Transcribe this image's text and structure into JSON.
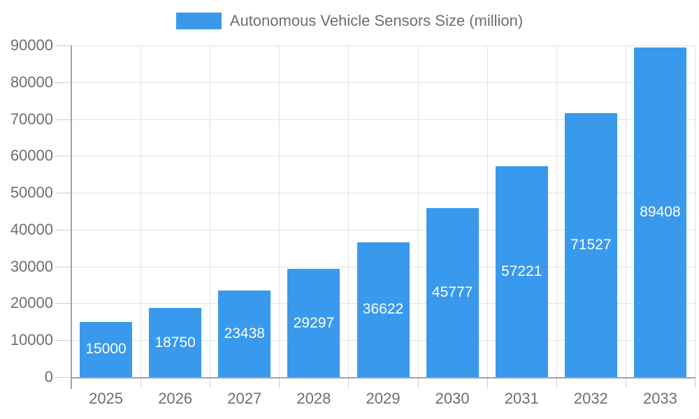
{
  "legend": {
    "label": "Autonomous Vehicle Sensors Size (million)"
  },
  "colors": {
    "background": "#FFFFFF",
    "bar": "#3999ED",
    "gridline": "#E2E2E2",
    "axis_line": "#A3A3A3",
    "tick": "#CCCCCC",
    "axis_text": "#6E6E6E",
    "legend_text": "#6E6E6E",
    "value_text": "#FFFFFF"
  },
  "chart_data": {
    "type": "bar",
    "title": "",
    "legend_entries": [
      "Autonomous Vehicle Sensors Size (million)"
    ],
    "legend_position": "top-center",
    "categories": [
      "2025",
      "2026",
      "2027",
      "2028",
      "2029",
      "2030",
      "2031",
      "2032",
      "2033"
    ],
    "values": [
      15000,
      18750,
      23438,
      29297,
      36622,
      45777,
      57221,
      71527,
      89408
    ],
    "xlabel": "",
    "ylabel": "",
    "ylim": [
      0,
      90000
    ],
    "yticks": [
      0,
      10000,
      20000,
      30000,
      40000,
      50000,
      60000,
      70000,
      80000,
      90000
    ],
    "grid": "horizontal gridlines at yticks and vertical gridlines at category boundaries",
    "value_label_position": "centered inside bar",
    "value_label_color": "#FFFFFF"
  }
}
